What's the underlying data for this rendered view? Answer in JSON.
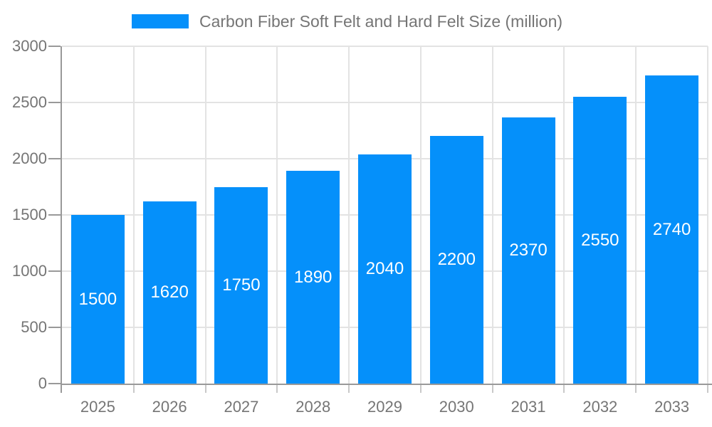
{
  "chart_data": {
    "type": "bar",
    "title": "Carbon Fiber Soft Felt and Hard Felt Size (million)",
    "series": [
      {
        "name": "Carbon Fiber Soft Felt and Hard Felt Size (million)",
        "values": [
          1500,
          1620,
          1750,
          1890,
          2040,
          2200,
          2370,
          2550,
          2740
        ]
      }
    ],
    "categories": [
      "2025",
      "2026",
      "2027",
      "2028",
      "2029",
      "2030",
      "2031",
      "2032",
      "2033"
    ],
    "xlabel": "",
    "ylabel": "",
    "ylim": [
      0,
      3000
    ],
    "yticks": [
      0,
      500,
      1000,
      1500,
      2000,
      2500,
      3000
    ],
    "grid": "horizontal and vertical gridlines on",
    "legend_position": "top",
    "value_labels": "inside bars, vertically centered",
    "colors": {
      "bar": "#0590fa",
      "value_label": "#ffffff",
      "axis_label": "#757575",
      "legend_text": "#757575",
      "axis_line": "#999999",
      "grid_line": "#e3e3e3",
      "x_tick": "#c9c9c9",
      "background": "#ffffff"
    }
  }
}
